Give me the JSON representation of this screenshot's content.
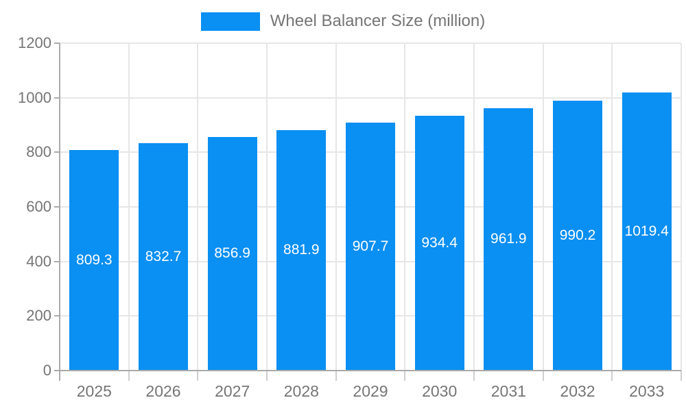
{
  "legend": {
    "label": "Wheel Balancer Size (million)"
  },
  "chart_data": {
    "type": "bar",
    "title": "",
    "series_name": "Wheel Balancer Size (million)",
    "categories": [
      "2025",
      "2026",
      "2027",
      "2028",
      "2029",
      "2030",
      "2031",
      "2032",
      "2033"
    ],
    "values": [
      809.3,
      832.7,
      856.9,
      881.9,
      907.7,
      934.4,
      961.9,
      990.2,
      1019.4
    ],
    "xlabel": "",
    "ylabel": "",
    "ylim": [
      0,
      1200
    ],
    "yticks": [
      0,
      200,
      400,
      600,
      800,
      1000,
      1200
    ],
    "grid": true,
    "legend_position": "top",
    "bar_color": "#0a8ff2",
    "value_label_color": "#ffffff",
    "tick_label_color": "#757575",
    "gridline_color": "#e6e6e6",
    "axis_color": "#a9a9a9"
  }
}
